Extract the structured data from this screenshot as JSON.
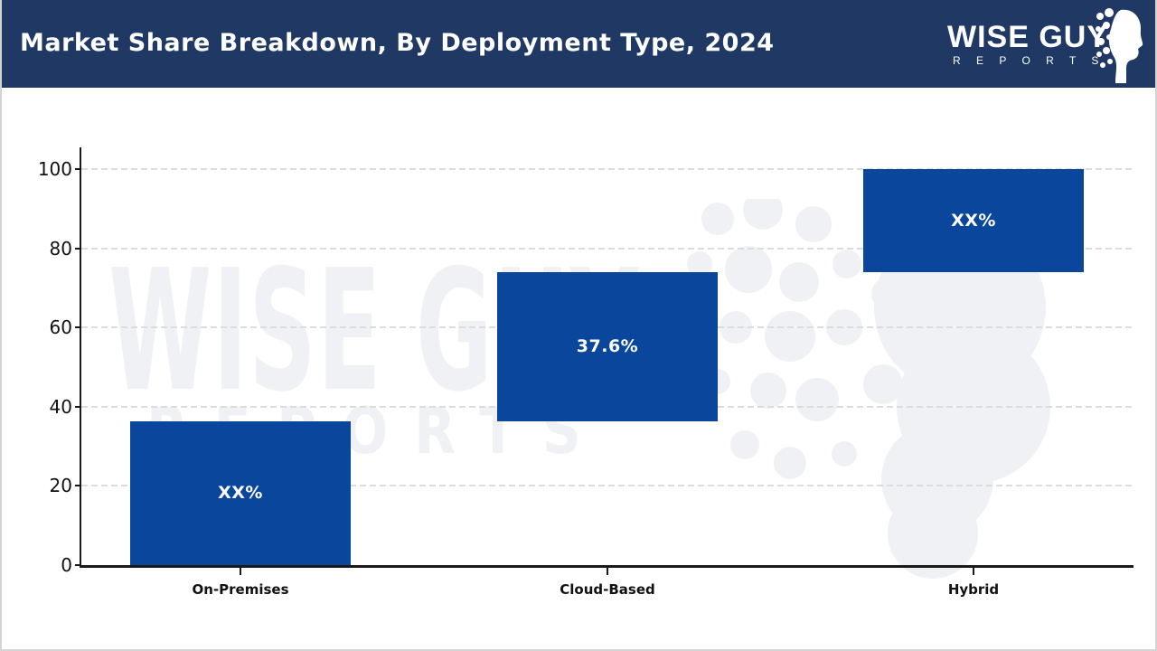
{
  "header": {
    "title": "Market Share Breakdown, By Deployment Type, 2024",
    "bg_color": "#1f3864",
    "logo": {
      "name": "WISE GUY",
      "subname": "R E P O R T S"
    }
  },
  "watermark": {
    "line1": "WISE GUY",
    "line2": "REPORTS"
  },
  "chart_data": {
    "type": "bar",
    "subtype": "floating_segment_waterfall",
    "title": "Market Share Breakdown, By Deployment Type, 2024",
    "categories": [
      "On-Premises",
      "Cloud-Based",
      "Hybrid"
    ],
    "segments": [
      {
        "category": "On-Premises",
        "start": 0,
        "end": 36.4,
        "label": "XX%"
      },
      {
        "category": "Cloud-Based",
        "start": 36.4,
        "end": 74.0,
        "label": "37.6%"
      },
      {
        "category": "Hybrid",
        "start": 74.0,
        "end": 100.0,
        "label": "XX%"
      }
    ],
    "y_ticks": [
      0,
      20,
      40,
      60,
      80,
      100
    ],
    "ylim": [
      0,
      105.5
    ],
    "xlabel": "",
    "ylabel": "",
    "grid": "horizontal_dashed",
    "legend": "none",
    "bar_color": "#0a479c",
    "bar_label_color": "#ffffff",
    "axis_color": "#1a1a1a",
    "gridline_color": "#dcdcdc"
  }
}
